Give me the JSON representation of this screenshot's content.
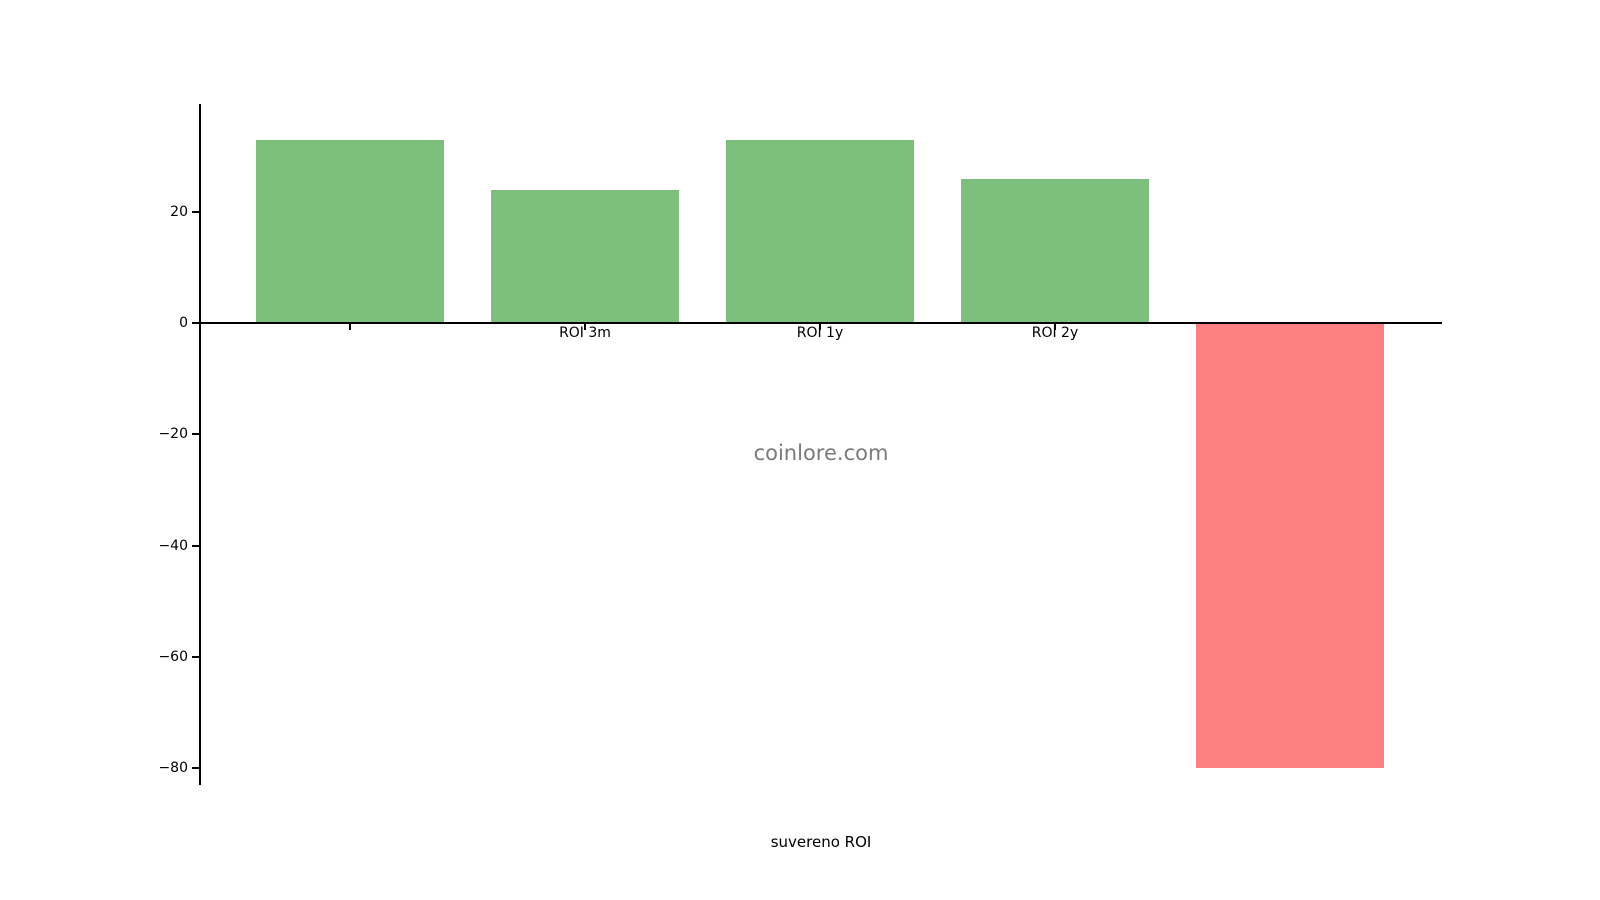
{
  "watermark": "coinlore.com",
  "chart_data": {
    "type": "bar",
    "title": "suvereno ROI",
    "xlabel": "suvereno ROI",
    "ylabel": "",
    "categories": [
      "",
      "ROI 3m",
      "ROI 1y",
      "ROI 2y",
      ""
    ],
    "values": [
      33,
      24,
      33,
      26,
      -80
    ],
    "yticks": [
      20,
      0,
      -20,
      -40,
      -60,
      -80
    ],
    "ylim": [
      -83,
      39.4
    ],
    "grid": false,
    "legend": null,
    "colors": {
      "positive": "#7dc07d",
      "negative": "#fc8080",
      "axis": "#000000",
      "watermark": "#7b7b7b",
      "background": "#ffffff"
    }
  }
}
